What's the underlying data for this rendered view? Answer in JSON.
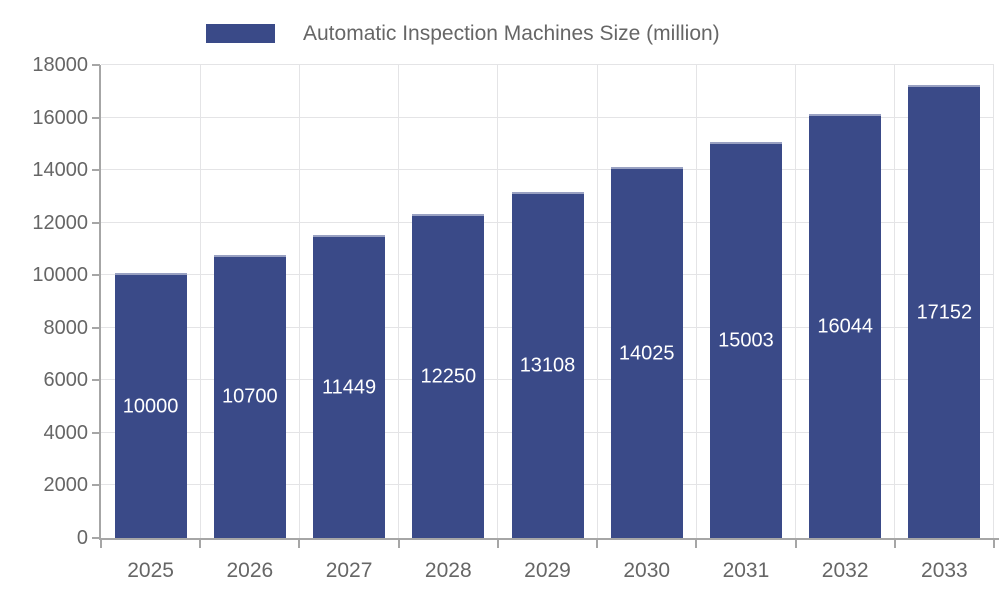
{
  "legend": {
    "label": "Automatic Inspection Machines Size (million)"
  },
  "chart_data": {
    "type": "bar",
    "title": "Automatic Inspection Machines Size (million)",
    "categories": [
      "2025",
      "2026",
      "2027",
      "2028",
      "2029",
      "2030",
      "2031",
      "2032",
      "2033"
    ],
    "values": [
      10000,
      10700,
      11449,
      12250,
      13108,
      14025,
      15003,
      16044,
      17152
    ],
    "series": [
      {
        "name": "Automatic Inspection Machines Size (million)",
        "values": [
          10000,
          10700,
          11449,
          12250,
          13108,
          14025,
          15003,
          16044,
          17152
        ]
      }
    ],
    "xlabel": "",
    "ylabel": "",
    "ylim": [
      0,
      18000
    ],
    "y_ticks": [
      0,
      2000,
      4000,
      6000,
      8000,
      10000,
      12000,
      14000,
      16000,
      18000
    ],
    "grid": true,
    "legend_position": "top",
    "colors": {
      "bar": "#3a4a88",
      "bar_top_edge": "#99a1c2",
      "value_label": "#ffffff",
      "gridline": "#e4e4e6",
      "axis_line": "#a6a6a6",
      "tick_label": "#666666",
      "legend_text": "#666666",
      "background": "#ffffff"
    }
  }
}
